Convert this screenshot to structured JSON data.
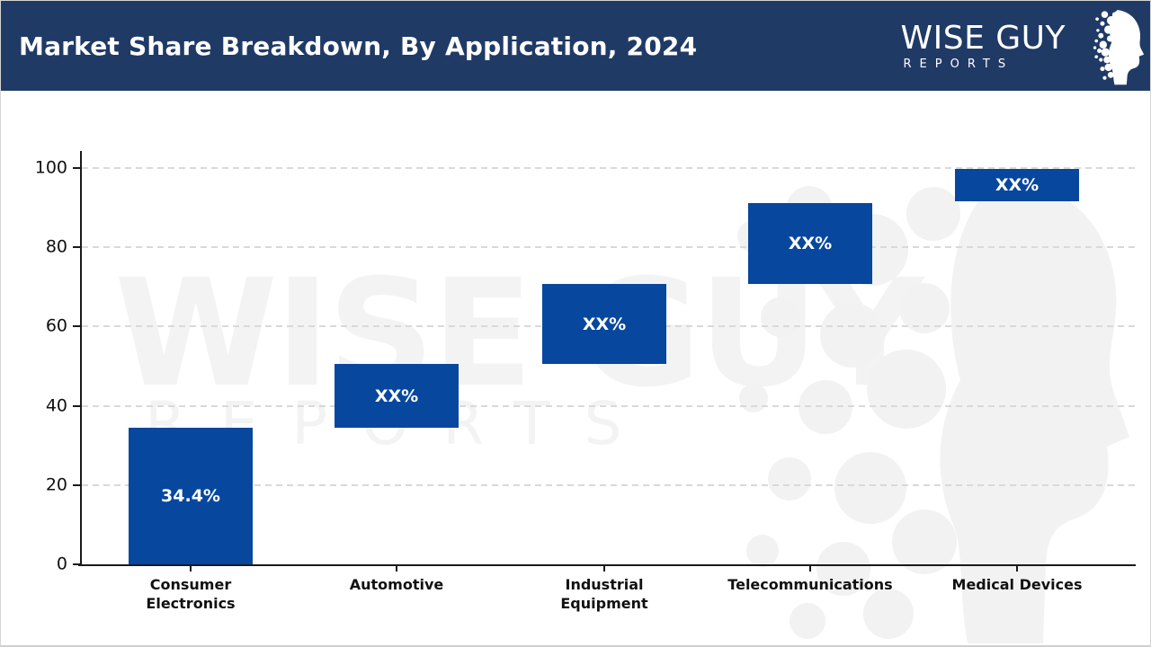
{
  "header": {
    "title": "Market Share Breakdown, By Application, 2024",
    "logo": {
      "wordmark": "WISE GUY",
      "subtext": "REPORTS"
    }
  },
  "watermark": {
    "wordmark": "WISE GUY",
    "subtext": "REPORTS"
  },
  "colors": {
    "header_bg": "#203a66",
    "bar": "#07479e",
    "grid": "#d9d9d9",
    "axis": "#1a1a1a",
    "category_text": "#111111",
    "bar_label_text": "#ffffff",
    "watermark": "#f3f3f3"
  },
  "chart_data": {
    "type": "bar",
    "subtype": "waterfall",
    "title": "Market Share Breakdown, By Application, 2024",
    "categories": [
      "Consumer Electronics",
      "Automotive",
      "Industrial Equipment",
      "Telecommunications",
      "Medical Devices"
    ],
    "bars": [
      {
        "category": "Consumer Electronics",
        "label_lines": [
          "Consumer",
          "Electronics"
        ],
        "label": "34.4%",
        "start": 0,
        "end": 34.4
      },
      {
        "category": "Automotive",
        "label_lines": [
          "Automotive"
        ],
        "label": "XX%",
        "start": 34.4,
        "end": 50.6
      },
      {
        "category": "Industrial Equipment",
        "label_lines": [
          "Industrial",
          "Equipment"
        ],
        "label": "XX%",
        "start": 50.6,
        "end": 70.8
      },
      {
        "category": "Telecommunications",
        "label_lines": [
          "Telecommunications"
        ],
        "label": "XX%",
        "start": 70.8,
        "end": 91.2
      },
      {
        "category": "Medical Devices",
        "label_lines": [
          "Medical Devices"
        ],
        "label": "XX%",
        "start": 91.6,
        "end": 99.8
      }
    ],
    "y_ticks": [
      0,
      20,
      40,
      60,
      80,
      100
    ],
    "ylim": [
      0,
      105
    ],
    "xlabel": "",
    "ylabel": "",
    "grid": "horizontal-dashed",
    "legend": "none"
  }
}
